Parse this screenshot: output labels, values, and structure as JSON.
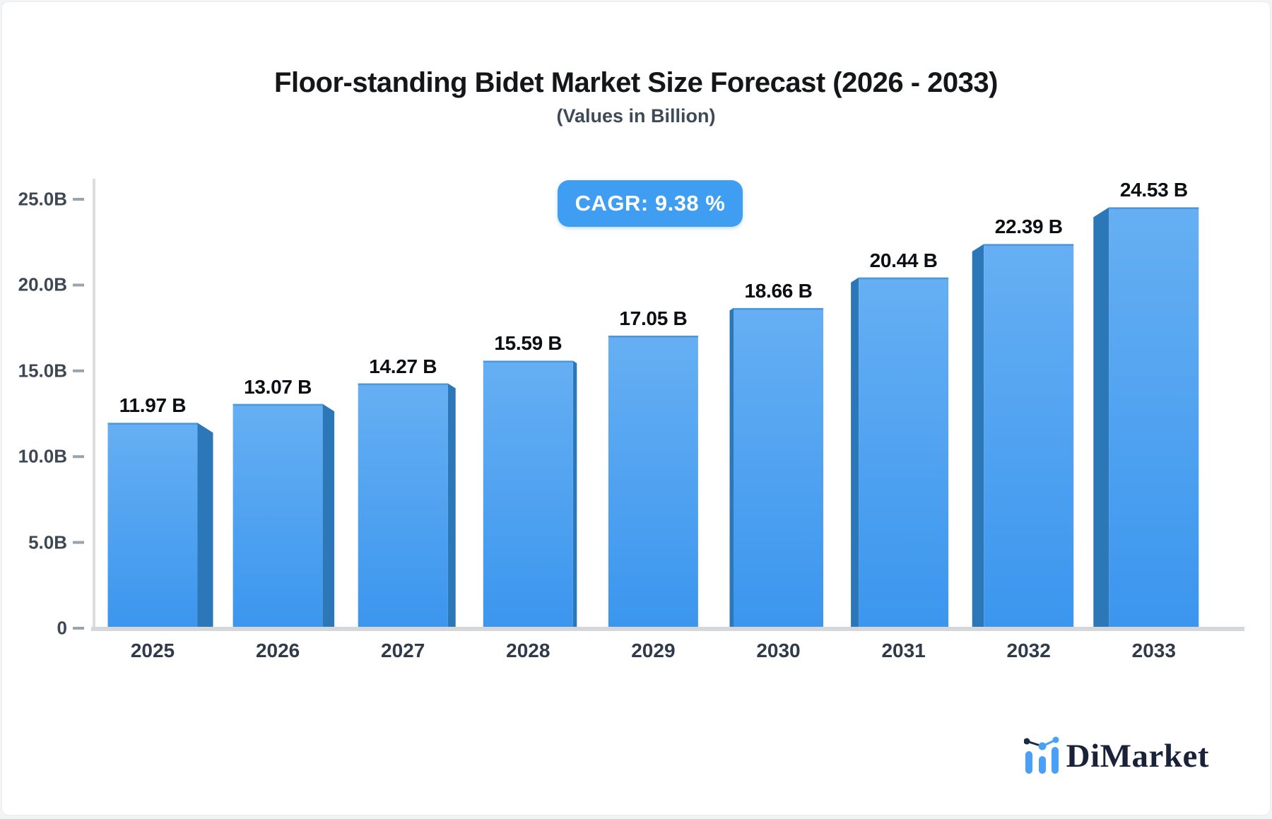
{
  "page": {
    "background": "#f2f3f5",
    "card_background": "#ffffff"
  },
  "header": {
    "title": "Floor-standing Bidet Market Size Forecast (2026 - 2033)",
    "subtitle": "(Values in Billion)"
  },
  "cagr_badge": {
    "text": "CAGR: 9.38 %",
    "background": "#3f9ef2",
    "text_color": "#ffffff"
  },
  "chart_data": {
    "type": "bar",
    "title": "Floor-standing Bidet Market Size Forecast (2026 - 2033)",
    "subtitle": "(Values in Billion)",
    "categories": [
      "2025",
      "2026",
      "2027",
      "2028",
      "2029",
      "2030",
      "2031",
      "2032",
      "2033"
    ],
    "values": [
      11.97,
      13.07,
      14.27,
      15.59,
      17.05,
      18.66,
      20.44,
      22.39,
      24.53
    ],
    "value_labels": [
      "11.97 B",
      "13.07 B",
      "14.27 B",
      "15.59 B",
      "17.05 B",
      "18.66 B",
      "20.44 B",
      "22.39 B",
      "24.53 B"
    ],
    "unit": "Billion",
    "xlabel": "",
    "ylabel": "",
    "ylim": [
      0,
      25
    ],
    "ytick_labels": [
      "25.0B",
      "20.0B",
      "15.0B",
      "10.0B",
      "5.0B",
      "0"
    ],
    "ytick_values": [
      25,
      20,
      15,
      10,
      5,
      0
    ],
    "grid": false,
    "legend": false,
    "style": "3d-extruded-bars-center-perspective",
    "bar_face_color_top": "#66aff3",
    "bar_face_color_bottom": "#3b96ee",
    "bar_side_color": "#2c77b8",
    "bar_top_edge_color": "#3d8ad2",
    "axis_line_color": "#d5d7da",
    "tick_dash_color": "#9aa4ae"
  },
  "footer": {
    "brand": "DiMarket",
    "brand_icon": "bar-chart-logo-icon",
    "brand_icon_blue": "#4aa0f6",
    "brand_icon_navy": "#1b2a4a"
  }
}
